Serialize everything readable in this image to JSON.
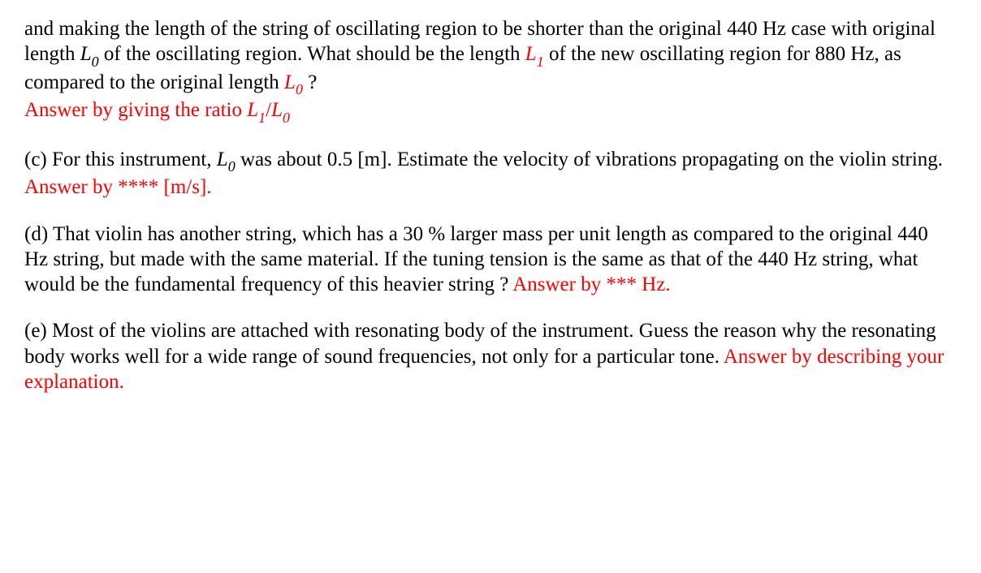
{
  "text_color": "#000000",
  "highlight_color": "#ff0000",
  "background_color": "#ffffff",
  "font_family": "Times New Roman",
  "font_size_pt": 19,
  "paragraphs": {
    "p1": {
      "t1": "and making the length of the string of oscillating region to be shorter than the original 440 Hz case with original length ",
      "L": "L",
      "sub0a": "0",
      "t2": " of the oscillating region.  What should be the length ",
      "sub1": "1",
      "t3": " of the new oscillating region for 880 Hz, as compared to the original length ",
      "sub0b": "0",
      "t4": " ?",
      "r1": "Answer by giving the ratio ",
      "slash": "/",
      "sub1b": "1",
      "sub0c": "0"
    },
    "p2": {
      "t1": "(c) For this instrument, ",
      "L": "L",
      "sub0": "0",
      "t2": " was about 0.5 [m].  Estimate the velocity of vibrations propagating on the violin string.  ",
      "r1": "Answer by  **** [m/s]."
    },
    "p3": {
      "t1": "(d) That violin has another string, which has a 30 % larger mass per unit length as compared to the original 440 Hz string, but made with the same material. If the tuning tension is the same as that of the 440 Hz string, what would be the fundamental frequency of this heavier string ?  ",
      "r1": "Answer by  *** Hz."
    },
    "p4": {
      "t1": "(e) Most of the violins are attached with resonating body of the instrument.  Guess the reason why the resonating body works well for a wide range of sound frequencies, not only for a particular tone.  ",
      "r1": "Answer by describing your explanation."
    }
  }
}
